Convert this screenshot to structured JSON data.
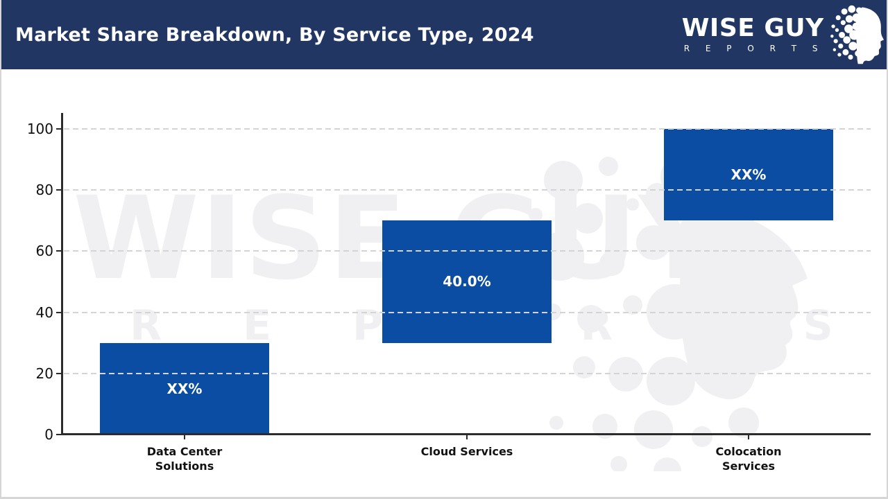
{
  "header": {
    "title": "Market Share Breakdown, By Service Type, 2024",
    "background_color": "#213663",
    "logo": {
      "name": "WISE GUY",
      "tagline": "R E P O R T S"
    }
  },
  "watermark": {
    "line1": "WISE GUY",
    "line2": "R E P O R T S"
  },
  "chart_data": {
    "type": "bar",
    "subtype": "floating-range-bars",
    "title": "Market Share Breakdown, By Service Type, 2024",
    "categories": [
      "Data Center Solutions",
      "Cloud Services",
      "Colocation Services"
    ],
    "bars": [
      {
        "category": "Data Center Solutions",
        "label": "XX%",
        "start": 0,
        "end": 30
      },
      {
        "category": "Cloud Services",
        "label": "40.0%",
        "start": 30,
        "end": 70
      },
      {
        "category": "Colocation Services",
        "label": "XX%",
        "start": 70,
        "end": 100
      }
    ],
    "yticks": [
      0,
      20,
      40,
      60,
      80,
      100
    ],
    "ylim": [
      0,
      105
    ],
    "xlabel": "",
    "ylabel": "",
    "grid": "horizontal-dashed",
    "legend": "none",
    "bar_color": "#0b4da2",
    "grid_color": "#d4d4d4",
    "axis_color": "#2b2b2b"
  }
}
